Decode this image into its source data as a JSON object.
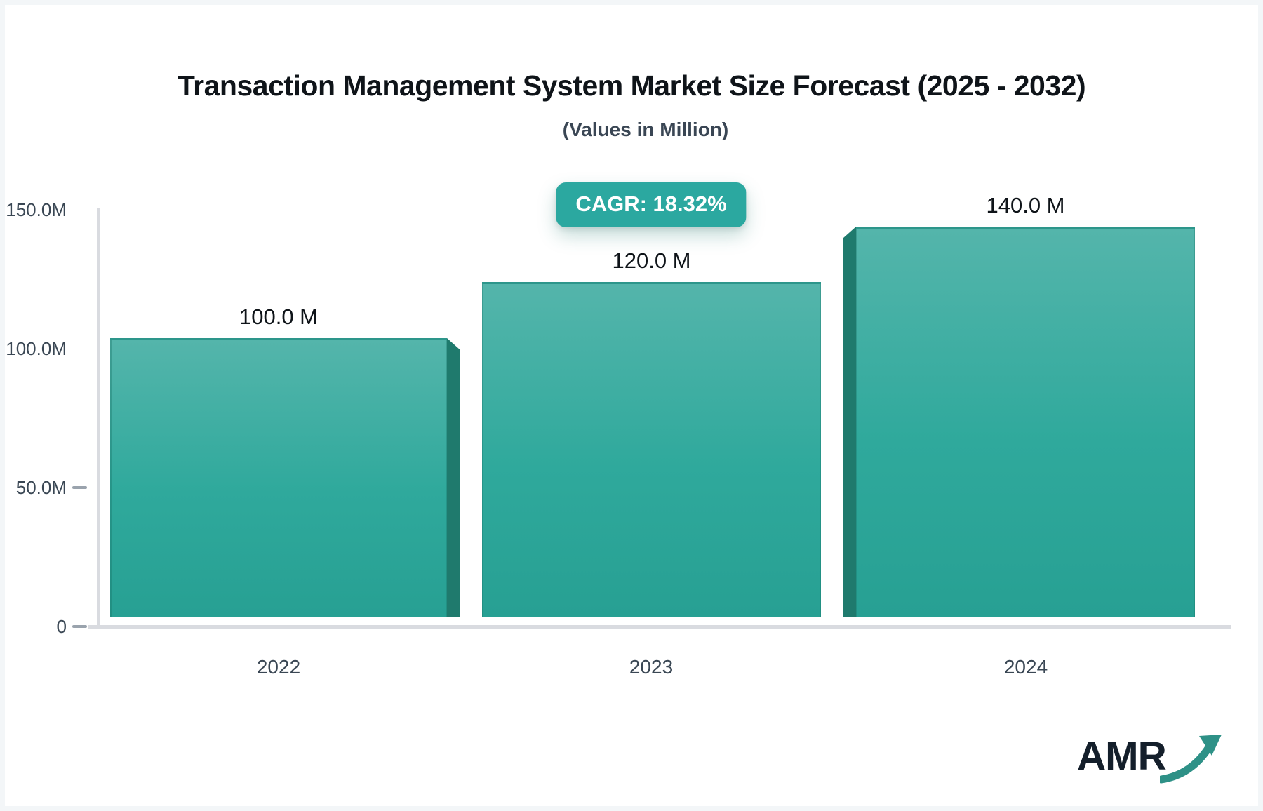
{
  "header": {
    "title": "Transaction Management System Market Size Forecast (2025 - 2032)",
    "subtitle": "(Values in Million)"
  },
  "badge": {
    "text": "CAGR: 18.32%"
  },
  "chart_data": {
    "type": "bar",
    "title": "Transaction Management System Market Size Forecast (2025 - 2032)",
    "subtitle": "(Values in Million)",
    "unit": "Million",
    "categories": [
      "2022",
      "2023",
      "2024"
    ],
    "values": [
      100.0,
      120.0,
      140.0
    ],
    "bar_labels": [
      "100.0 M",
      "120.0 M",
      "140.0 M"
    ],
    "cagr": "18.32%",
    "ylim": [
      0,
      150
    ],
    "yticks": [
      "150.0M",
      "100.0M",
      "50.0M",
      "0"
    ],
    "grid": "off",
    "legend": "none",
    "colors": {
      "accent": "#2BA8A0",
      "bar_top": "#54B5AB",
      "bar_mid": "#2FA99C",
      "bar_bottom": "#27A093",
      "bar_top_edge": "#2D968B",
      "bar_side": "#1F7A6D",
      "axis_line": "#D9DBE0",
      "label_text": "#3A4754"
    }
  },
  "logo": {
    "text": "AMR"
  }
}
